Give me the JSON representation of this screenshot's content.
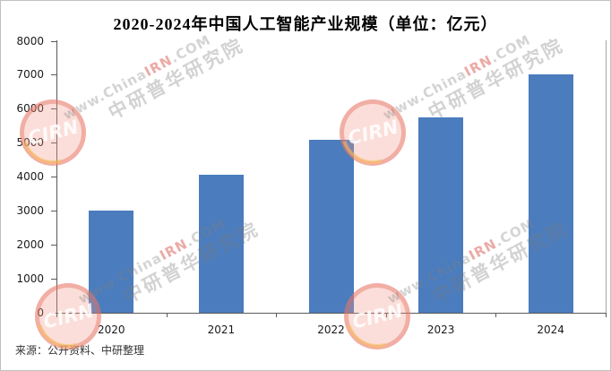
{
  "title": "2020-2024年中国人工智能产业规模（单位：亿元）",
  "source_note": "来源：公开资料、中研整理",
  "watermark": {
    "url_prefix": "www.China",
    "url_highlight": "IRN",
    "url_suffix": ".COM",
    "cn_text": "中研普华研究院",
    "logo_text": "CIRN"
  },
  "colors": {
    "bar": "#4A7CBE",
    "axis": "#595959",
    "plot_right_border": "#A6A6A6",
    "frame_border": "#C0C0C0",
    "watermark_red": "#D64E42",
    "watermark_gray": "#808080",
    "logo_fill": "#F2988A"
  },
  "chart_data": {
    "type": "bar",
    "title": "2020-2024年中国人工智能产业规模（单位：亿元）",
    "categories": [
      "2020",
      "2021",
      "2022",
      "2023",
      "2024"
    ],
    "values": [
      3000,
      4050,
      5080,
      5750,
      7000
    ],
    "xlabel": "",
    "ylabel": "",
    "ylim": [
      0,
      8000
    ],
    "ytick_interval": 1000,
    "yticks": [
      "8000",
      "7000",
      "6000",
      "5000",
      "4000",
      "3000",
      "2000",
      "1000",
      "0"
    ],
    "grid": false,
    "legend": "none",
    "bar_color": "#4A7CBE",
    "source": "来源：公开资料、中研整理"
  }
}
